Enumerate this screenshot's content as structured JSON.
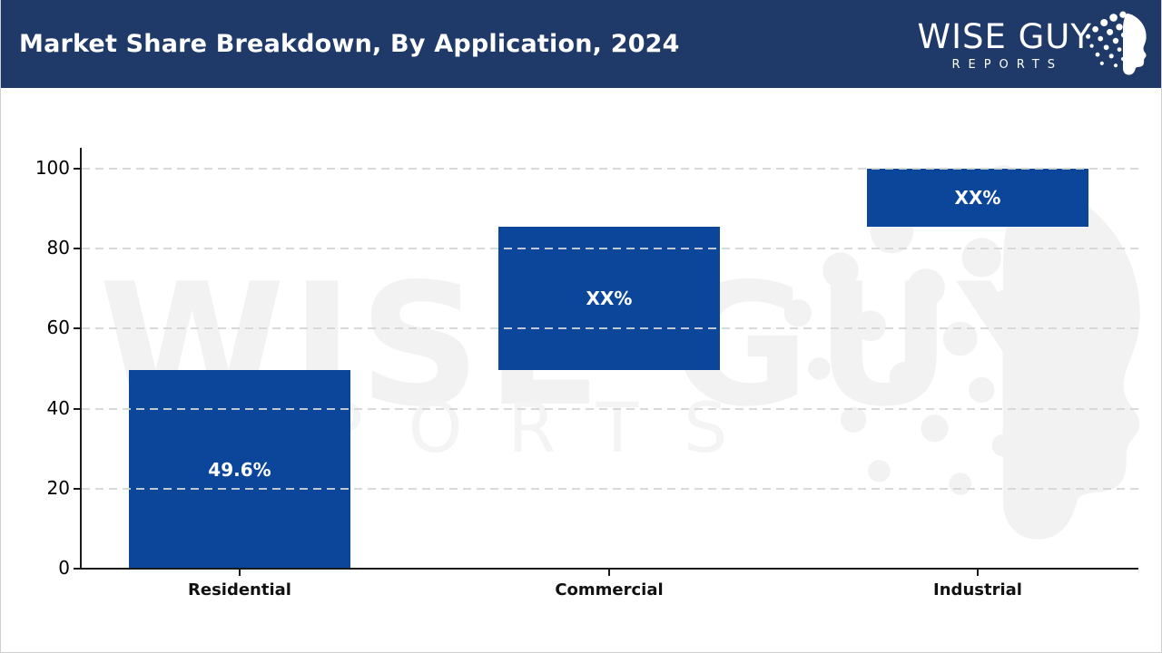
{
  "header": {
    "title": "Market Share Breakdown, By Application, 2024",
    "logo": {
      "wordmark": "WISE GUY",
      "subtext": "REPORTS",
      "face_icon": "dotted-head-profile"
    }
  },
  "watermark": {
    "line1": "WISE GUY",
    "line2": "REPORTS",
    "face_icon": "dotted-head-profile"
  },
  "colors": {
    "header_bg": "#1f3a68",
    "bar_fill": "#0b469b",
    "bar_label": "#ffffff",
    "gridline": "#d5d5d5",
    "axis": "#1a1a1a",
    "watermark": "#f2f2f2"
  },
  "chart_data": {
    "type": "bar",
    "subtype": "stacked-waterfall-segments",
    "title": "Market Share Breakdown, By Application, 2024",
    "categories": [
      "Residential",
      "Commercial",
      "Industrial"
    ],
    "series": [
      {
        "name": "Residential",
        "start": 0,
        "end": 49.6,
        "value_label": "49.6%"
      },
      {
        "name": "Commercial",
        "start": 49.6,
        "end": 85.5,
        "value_label": "XX%"
      },
      {
        "name": "Industrial",
        "start": 85.5,
        "end": 100,
        "value_label": "XX%"
      }
    ],
    "xlabel": "",
    "ylabel": "",
    "ylim": [
      0,
      100
    ],
    "yticks": [
      0,
      20,
      40,
      60,
      80,
      100
    ],
    "grid": "horizontal-dashed",
    "legend": "none"
  }
}
